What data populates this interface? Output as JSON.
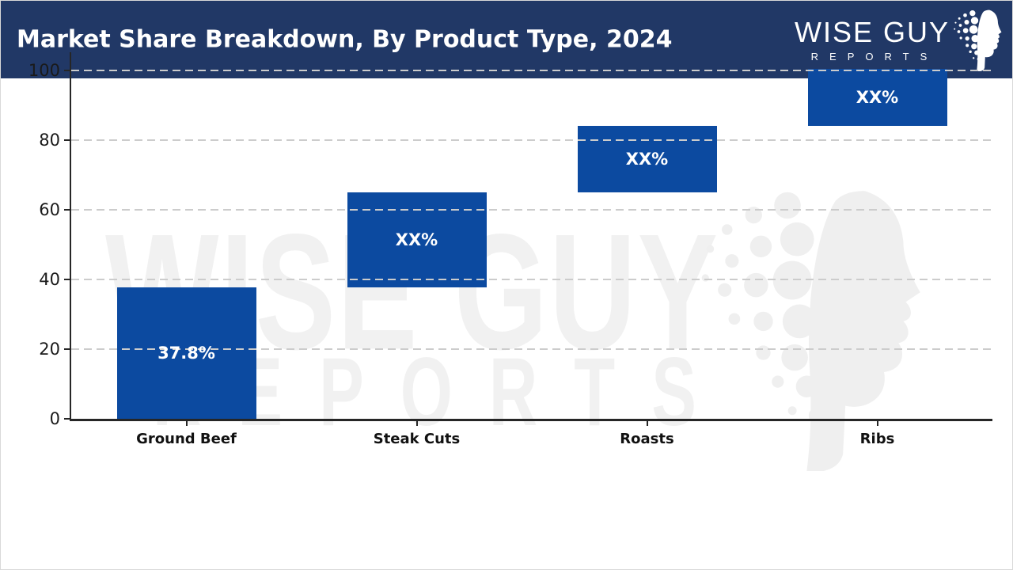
{
  "header": {
    "title": "Market Share Breakdown, By Product Type, 2024",
    "bg_color": "#213866",
    "logo": {
      "line1": "WISE GUY",
      "line2": "REPORTS"
    }
  },
  "watermark": {
    "line1": "WISE GUY",
    "line2": "REPORTS"
  },
  "chart_data": {
    "type": "bar",
    "variant": "floating-waterfall-columns",
    "title": "Market Share Breakdown, By Product Type, 2024",
    "categories": [
      "Ground Beef",
      "Steak Cuts",
      "Roasts",
      "Ribs"
    ],
    "segments": [
      {
        "category": "Ground Beef",
        "start": 0,
        "end": 37.8,
        "value": 37.8,
        "label": "37.8%"
      },
      {
        "category": "Steak Cuts",
        "start": 37.8,
        "end": 65,
        "value": 27.2,
        "label": "XX%"
      },
      {
        "category": "Roasts",
        "start": 65,
        "end": 84,
        "value": 19.0,
        "label": "XX%"
      },
      {
        "category": "Ribs",
        "start": 84,
        "end": 100.5,
        "value": 16.5,
        "label": "XX%"
      }
    ],
    "y_ticks": [
      0,
      20,
      40,
      60,
      80,
      100
    ],
    "ylim": [
      0,
      105
    ],
    "xlabel": "",
    "ylabel": "",
    "grid": true,
    "grid_style": "dashed",
    "grid_over_bars": true,
    "legend": false,
    "bar_color": "#0c4aa0",
    "grid_color": "#cccccc",
    "axis_color": "#262626",
    "bar_label_color": "#ffffff",
    "tick_label_color": "#1a1a1a"
  }
}
